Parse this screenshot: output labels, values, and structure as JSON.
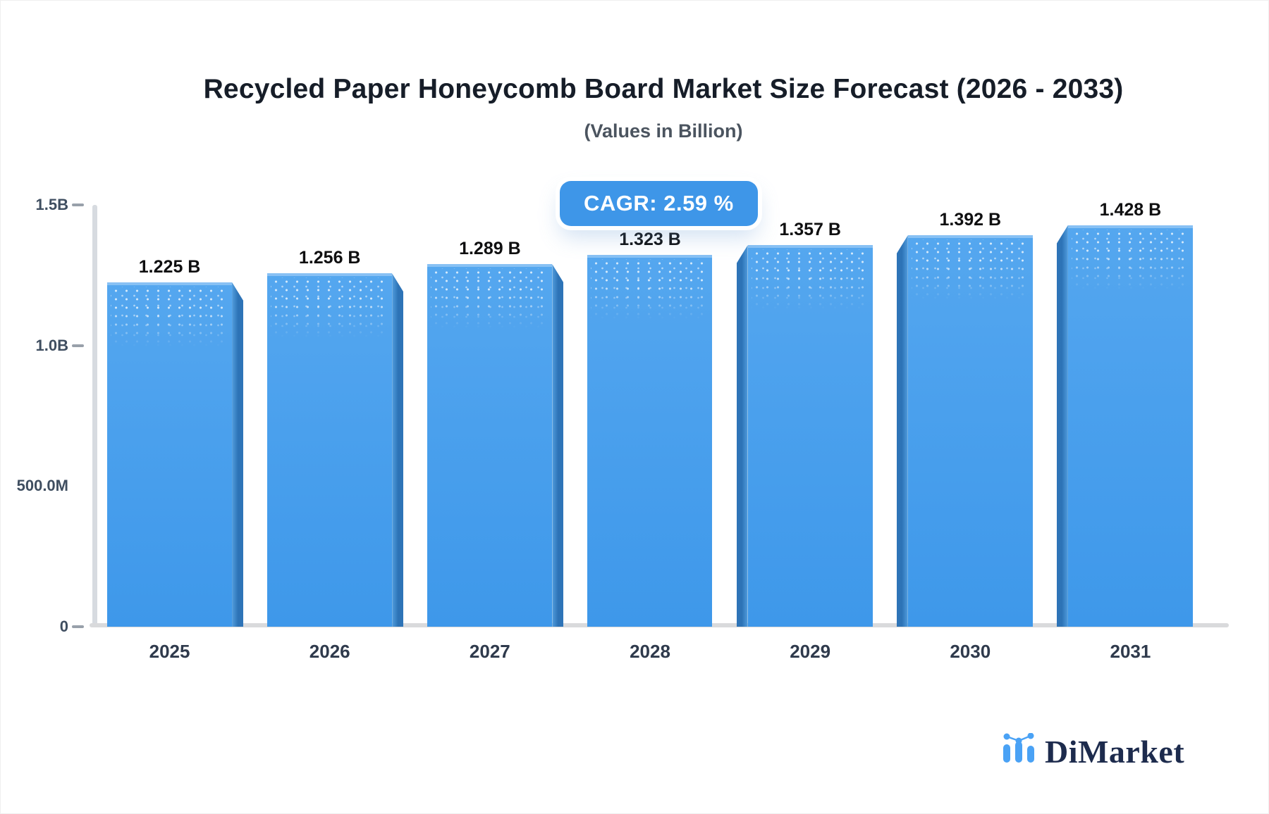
{
  "header": {
    "title": "Recycled Paper Honeycomb Board Market Size Forecast (2026 - 2033)",
    "subtitle": "(Values in Billion)"
  },
  "cagr_badge": {
    "label": "CAGR: 2.59 %"
  },
  "brand": {
    "name": "DiMarket",
    "icon": "bar-chart-logo-icon",
    "icon_color": "#4aa2f5",
    "text_color": "#1d2b4d"
  },
  "chart_data": {
    "type": "bar",
    "title": "Recycled Paper Honeycomb Board Market Size Forecast (2026 - 2033)",
    "subtitle": "(Values in Billion)",
    "categories": [
      "2025",
      "2026",
      "2027",
      "2028",
      "2029",
      "2030",
      "2031"
    ],
    "values": [
      1.225,
      1.256,
      1.289,
      1.323,
      1.357,
      1.392,
      1.428
    ],
    "value_labels": [
      "1.225 B",
      "1.256 B",
      "1.289 B",
      "1.323 B",
      "1.357 B",
      "1.392 B",
      "1.428 B"
    ],
    "annotation": "CAGR: 2.59 %",
    "xlabel": "",
    "ylabel": "",
    "ylim": [
      0,
      1.5
    ],
    "y_ticks": [
      {
        "value": 1.5,
        "label": "1.5B",
        "dash": true
      },
      {
        "value": 1.0,
        "label": "1.0B",
        "dash": true
      },
      {
        "value": 0.5,
        "label": "500.0M",
        "dash": false
      },
      {
        "value": 0,
        "label": "0",
        "dash": true
      }
    ],
    "grid": false,
    "legend": false,
    "bar_colors": {
      "face_top": "#55a7ef",
      "face_bottom": "#3e98ea",
      "side": "#2d73b6"
    }
  }
}
